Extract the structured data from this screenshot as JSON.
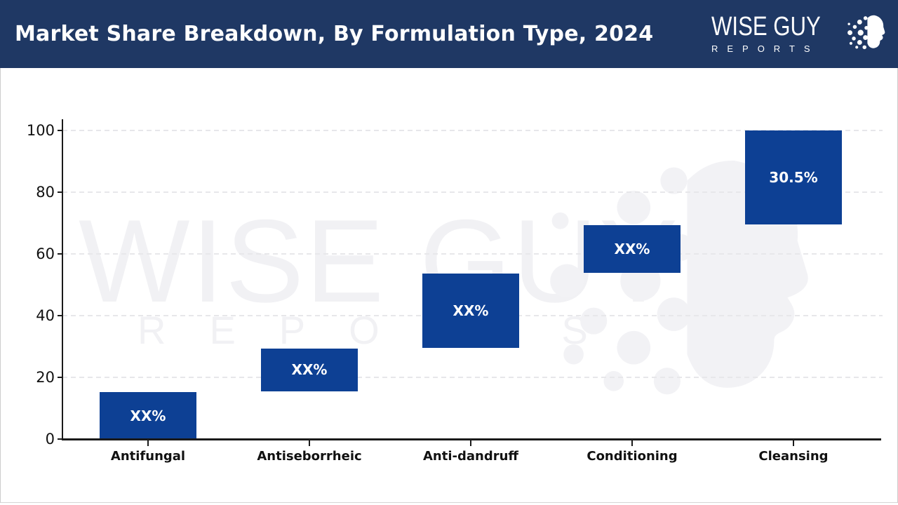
{
  "header": {
    "title": "Market Share Breakdown, By Formulation Type, 2024",
    "bg_color": "#1f3864"
  },
  "logo": {
    "line1": "WISE GUY",
    "line2": "REPORTS"
  },
  "watermark": {
    "line1": "WISE GUY",
    "line2": "REPORTS"
  },
  "chart_data": {
    "type": "bar",
    "subtype": "waterfall",
    "title": "Market Share Breakdown, By Formulation Type, 2024",
    "categories": [
      "Antifungal",
      "Antiseborrheic",
      "Anti-dandruff",
      "Conditioning",
      "Cleansing"
    ],
    "segments": [
      {
        "category": "Antifungal",
        "start": 0,
        "end": 15.2,
        "label": "XX%"
      },
      {
        "category": "Antiseborrheic",
        "start": 15.5,
        "end": 29.3,
        "label": "XX%"
      },
      {
        "category": "Anti-dandruff",
        "start": 29.5,
        "end": 53.6,
        "label": "XX%"
      },
      {
        "category": "Conditioning",
        "start": 53.9,
        "end": 69.3,
        "label": "XX%"
      },
      {
        "category": "Cleansing",
        "start": 69.5,
        "end": 100,
        "label": "30.5%"
      }
    ],
    "yticks": [
      0,
      20,
      40,
      60,
      80,
      100
    ],
    "ylim": [
      0,
      100
    ],
    "xlabel": "",
    "ylabel": "",
    "grid": "horizontal-dashed",
    "legend": "none",
    "bar_color": "#0d4094",
    "label_color": "#ffffff"
  }
}
